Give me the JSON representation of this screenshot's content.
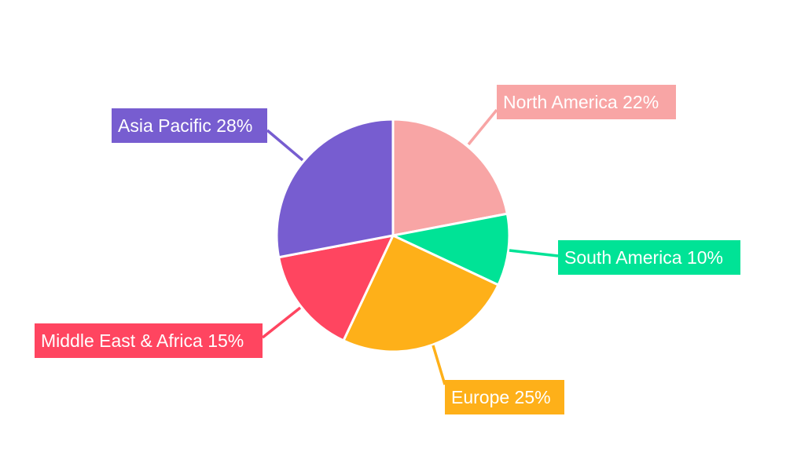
{
  "chart_data": {
    "type": "pie",
    "title": "",
    "start_angle": "top, clockwise",
    "legend": "none",
    "slices": [
      {
        "label": "North America",
        "value": 22,
        "display": "North America 22%",
        "color": "#F8A5A5"
      },
      {
        "label": "South America",
        "value": 10,
        "display": "South America 10%",
        "color": "#00E396"
      },
      {
        "label": "Europe",
        "value": 25,
        "display": "Europe 25%",
        "color": "#FEB019"
      },
      {
        "label": "Middle East & Africa",
        "value": 15,
        "display": "Middle East & Africa 15%",
        "color": "#FF4560"
      },
      {
        "label": "Asia Pacific",
        "value": 28,
        "display": "Asia Pacific 28%",
        "color": "#775DD0"
      }
    ]
  }
}
